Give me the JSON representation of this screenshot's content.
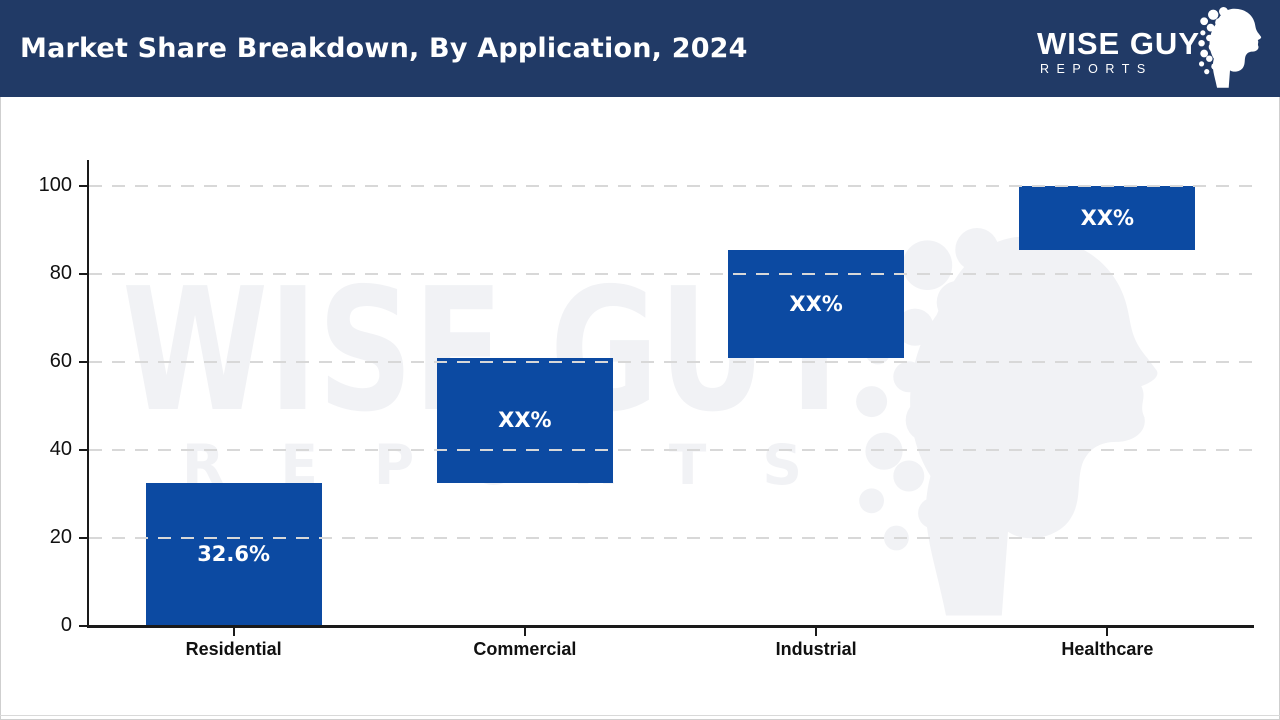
{
  "header": {
    "title": "Market Share Breakdown, By Application, 2024",
    "logo": {
      "line1": "WISE GUY",
      "line2": "REPORTS"
    },
    "bg_color": "#213A66"
  },
  "watermark": {
    "line1": "WISE GUY",
    "line2": "REPORTS"
  },
  "chart_data": {
    "type": "bar",
    "subtype": "floating-waterfall",
    "title": "Market Share Breakdown, By Application, 2024",
    "categories": [
      "Residential",
      "Commercial",
      "Industrial",
      "Healthcare"
    ],
    "bars": [
      {
        "category": "Residential",
        "start": 0,
        "end": 32.6,
        "label": "32.6%"
      },
      {
        "category": "Commercial",
        "start": 32.6,
        "end": 61,
        "label": "XX%"
      },
      {
        "category": "Industrial",
        "start": 61,
        "end": 85.5,
        "label": "XX%"
      },
      {
        "category": "Healthcare",
        "start": 85.5,
        "end": 100,
        "label": "XX%"
      }
    ],
    "ylim": [
      0,
      100
    ],
    "yticks": [
      0,
      20,
      40,
      60,
      80,
      100
    ],
    "xlabel": "",
    "ylabel": "",
    "grid": "horizontal-dashed",
    "legend": "none",
    "bar_color": "#0C4AA2",
    "bar_label_color": "#FFFFFF"
  }
}
